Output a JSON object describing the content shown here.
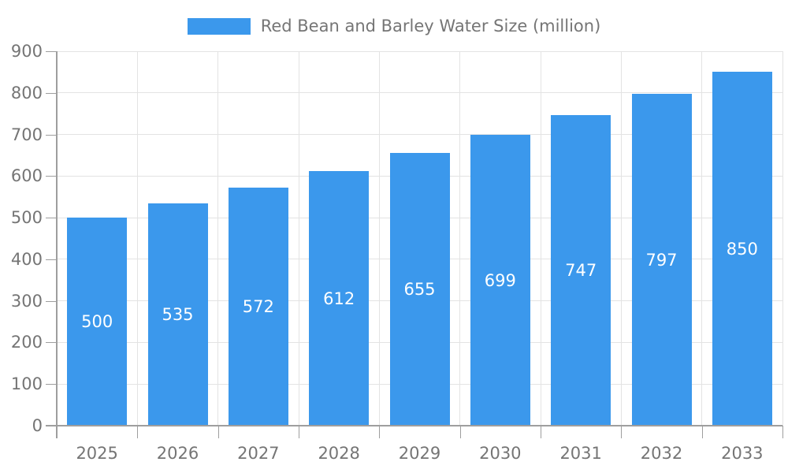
{
  "chart_data": {
    "type": "bar",
    "title": "",
    "xlabel": "",
    "ylabel": "",
    "legend": {
      "label": "Red Bean and Barley Water Size (million)",
      "position": "top"
    },
    "categories": [
      "2025",
      "2026",
      "2027",
      "2028",
      "2029",
      "2030",
      "2031",
      "2032",
      "2033"
    ],
    "series": [
      {
        "name": "Red Bean and Barley Water Size (million)",
        "values": [
          500,
          535,
          572,
          612,
          655,
          699,
          747,
          797,
          850
        ]
      }
    ],
    "value_labels": [
      "500",
      "535",
      "572",
      "612",
      "655",
      "699",
      "747",
      "797",
      "850"
    ],
    "ylim": [
      0,
      900
    ],
    "ytick_step": 100,
    "yticks": [
      "0",
      "100",
      "200",
      "300",
      "400",
      "500",
      "600",
      "700",
      "800",
      "900"
    ],
    "grid": "horizontal-and-vertical",
    "colors": {
      "bar": "#3B98EC",
      "value_label": "#ffffff",
      "axis_label": "#757575",
      "legend_label": "#757575",
      "grid_line": "#e3e3e3",
      "axis_line": "#9e9e9e",
      "background": "#ffffff"
    }
  }
}
